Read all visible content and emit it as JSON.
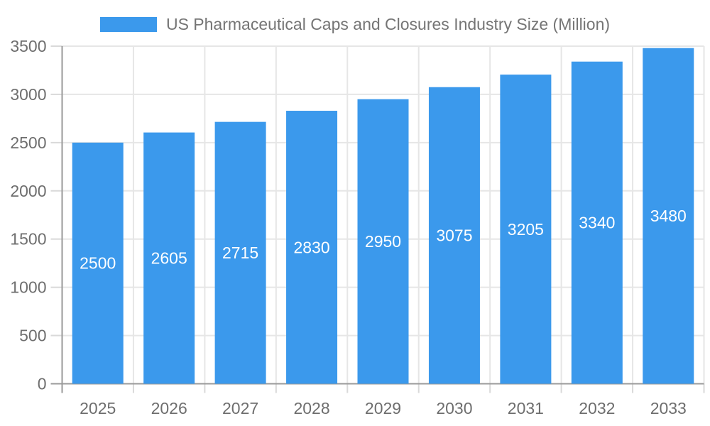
{
  "chart_data": {
    "type": "bar",
    "title": "",
    "legend_label": "US Pharmaceutical Caps and Closures Industry Size (Million)",
    "legend_position": "top",
    "categories": [
      "2025",
      "2026",
      "2027",
      "2028",
      "2029",
      "2030",
      "2031",
      "2032",
      "2033"
    ],
    "values": [
      2500,
      2605,
      2715,
      2830,
      2950,
      3075,
      3205,
      3340,
      3480
    ],
    "xlabel": "",
    "ylabel": "",
    "ylim": [
      0,
      3500
    ],
    "ytick_step": 500,
    "yticks": [
      0,
      500,
      1000,
      1500,
      2000,
      2500,
      3000,
      3500
    ],
    "grid": true,
    "bar_label_position": "inside-center",
    "colors": {
      "bar": "#3B99EC",
      "bar_label": "#FFFFFF",
      "grid": "#E6E6E6",
      "tick": "#D9D9D9",
      "axis": "#9A9A9A",
      "text": "#6E6E6E",
      "legend_text": "#757575",
      "background": "#FFFFFF"
    }
  }
}
